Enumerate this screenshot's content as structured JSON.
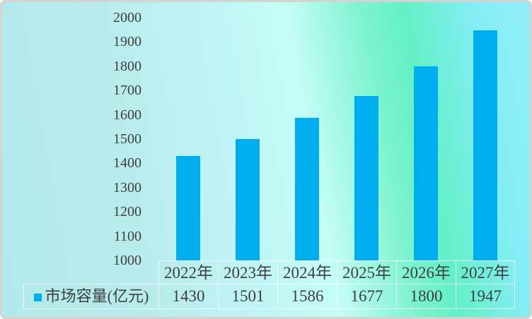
{
  "chart_data": {
    "type": "bar",
    "title": "",
    "categories": [
      "2022年",
      "2023年",
      "2024年",
      "2025年",
      "2026年",
      "2027年"
    ],
    "series": [
      {
        "name": "市场容量(亿元)",
        "values": [
          1430,
          1501,
          1586,
          1677,
          1800,
          1947
        ]
      }
    ],
    "xlabel": "",
    "ylabel": "",
    "ylim": [
      1000,
      2000
    ],
    "yticks": [
      1000,
      1100,
      1200,
      1300,
      1400,
      1500,
      1600,
      1700,
      1800,
      1900,
      2000
    ],
    "grid": false,
    "legend_position": "data-table-row-label",
    "data_table_shown": true
  },
  "colors": {
    "bar": "#00AEEF",
    "text": "#3F3F3F",
    "table_border": "rgba(255,255,255,0.8)",
    "frame_border": "#D6D2D2",
    "background_stops": [
      "#B4E9EA",
      "#C0F4F6",
      "#C4FDF6",
      "#63F0C6",
      "#85EDF6",
      "#92EFFA"
    ]
  }
}
